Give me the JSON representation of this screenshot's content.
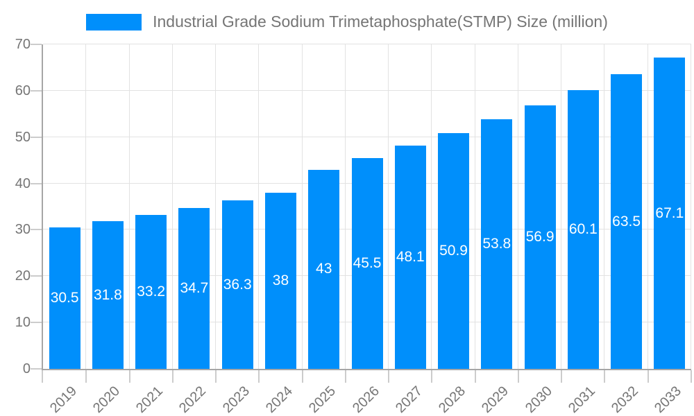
{
  "legend": {
    "label": "Industrial Grade Sodium Trimetaphosphate(STMP) Size (million)"
  },
  "chart_data": {
    "type": "bar",
    "title": "",
    "xlabel": "",
    "ylabel": "",
    "categories": [
      "2019",
      "2020",
      "2021",
      "2022",
      "2023",
      "2024",
      "2025",
      "2026",
      "2027",
      "2028",
      "2029",
      "2030",
      "2031",
      "2032",
      "2033"
    ],
    "series": [
      {
        "name": "Industrial Grade Sodium Trimetaphosphate(STMP) Size (million)",
        "values": [
          30.5,
          31.8,
          33.2,
          34.7,
          36.3,
          38,
          43,
          45.5,
          48.1,
          50.9,
          53.8,
          56.9,
          60.1,
          63.5,
          67.1
        ]
      }
    ],
    "data_labels": [
      "30.5",
      "31.8",
      "33.2",
      "34.7",
      "36.3",
      "38",
      "43",
      "45.5",
      "48.1",
      "50.9",
      "53.8",
      "56.9",
      "60.1",
      "63.5",
      "67.1"
    ],
    "ylim": [
      0,
      70
    ],
    "ytick_step": 10,
    "ytick_labels": [
      "0",
      "10",
      "20",
      "30",
      "40",
      "50",
      "60",
      "70"
    ],
    "grid": "horizontal and vertical light gray lines",
    "legend_position": "top-center",
    "x_tick_label_rotation_deg": -45
  },
  "colors": {
    "bar": "#008FFB",
    "bar_label_text": "#ffffff",
    "axis_line": "#a6a6a6",
    "tick_mark": "#cccccc",
    "grid_line": "#e2e2e2",
    "axis_label_text": "#757575",
    "legend_text": "#757575",
    "background": "#ffffff"
  }
}
